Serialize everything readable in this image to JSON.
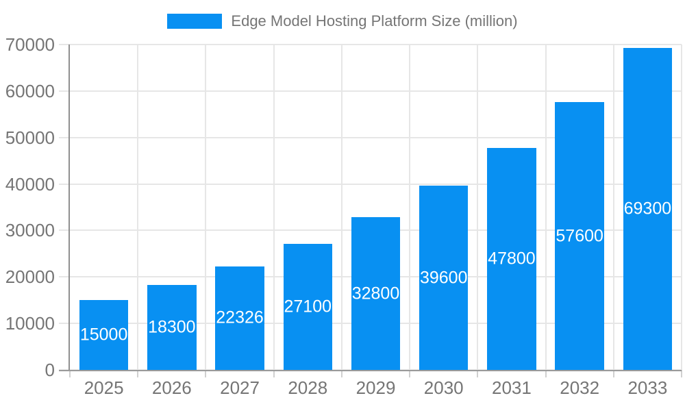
{
  "chart_data": {
    "type": "bar",
    "title": "Edge Model Hosting Platform Size (million)",
    "legend": [
      "Edge Model Hosting Platform Size (million)"
    ],
    "legend_position": "top",
    "categories": [
      "2025",
      "2026",
      "2027",
      "2028",
      "2029",
      "2030",
      "2031",
      "2032",
      "2033"
    ],
    "values": [
      15000,
      18300,
      22326,
      27100,
      32800,
      39600,
      47800,
      57600,
      69300
    ],
    "value_labels": [
      "15000",
      "18300",
      "22326",
      "27100",
      "32800",
      "39600",
      "47800",
      "57600",
      "69300"
    ],
    "xlabel": "",
    "ylabel": "",
    "ylim": [
      0,
      70000
    ],
    "yticks": [
      0,
      10000,
      20000,
      30000,
      40000,
      50000,
      60000,
      70000
    ],
    "grid": true,
    "colors": {
      "bar": "#0890F2",
      "bar_label": "#FFFFFF",
      "grid_line": "#E6E6E6",
      "tick_mark": "#D0D0D0",
      "axis_line_y": "#8F8F8F",
      "axis_line_x": "#9A9A9A",
      "tick_label": "#757575",
      "legend_text": "#757575",
      "background": "#FFFFFF"
    }
  }
}
